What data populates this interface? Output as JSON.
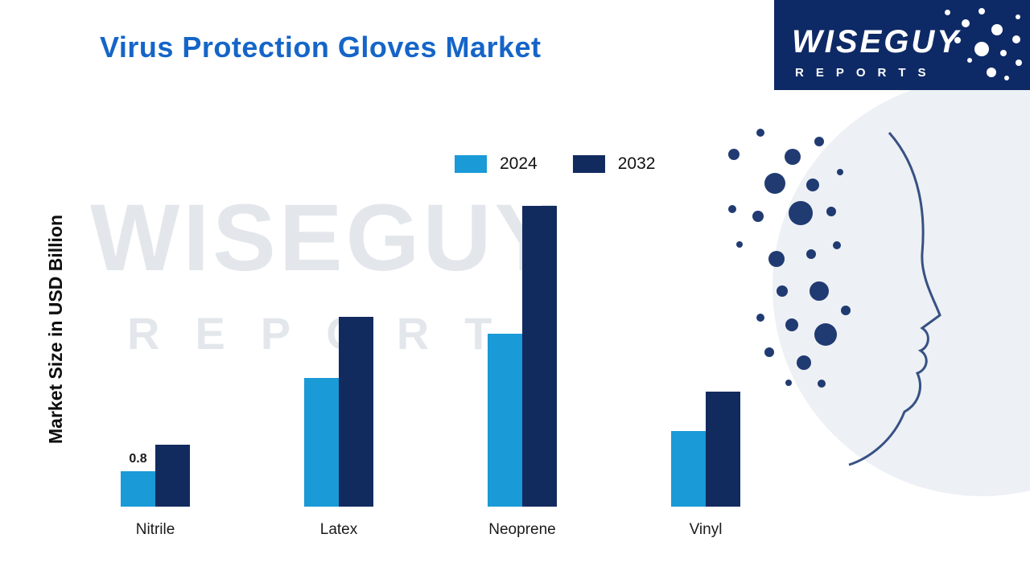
{
  "header": {
    "title": "Virus Protection Gloves Market"
  },
  "logo": {
    "brand": "WISEGUY",
    "sub": "REPORTS"
  },
  "watermark": {
    "line1": "WISEGUY",
    "line2": "REPORTS"
  },
  "colors": {
    "series_2024": "#1A9AD7",
    "series_2032": "#122B5F",
    "title_blue": "#1565C8",
    "logo_navy": "#0E2A66",
    "watermark_gray": "#E3E7EC"
  },
  "chart_data": {
    "type": "bar",
    "title": "Virus Protection Gloves Market",
    "xlabel": "",
    "ylabel": "Market Size in USD Billion",
    "categories": [
      "Nitrile",
      "Latex",
      "Neoprene",
      "Vinyl"
    ],
    "series": [
      {
        "name": "2024",
        "color": "#1A9AD7",
        "values": [
          0.8,
          2.9,
          3.9,
          1.7
        ]
      },
      {
        "name": "2032",
        "color": "#122B5F",
        "values": [
          1.4,
          4.3,
          6.8,
          2.6
        ]
      }
    ],
    "ylim": [
      0,
      7
    ],
    "grid": false,
    "legend_position": "top-center",
    "data_labels": [
      {
        "category_index": 0,
        "series_index": 0,
        "text": "0.8"
      }
    ]
  }
}
